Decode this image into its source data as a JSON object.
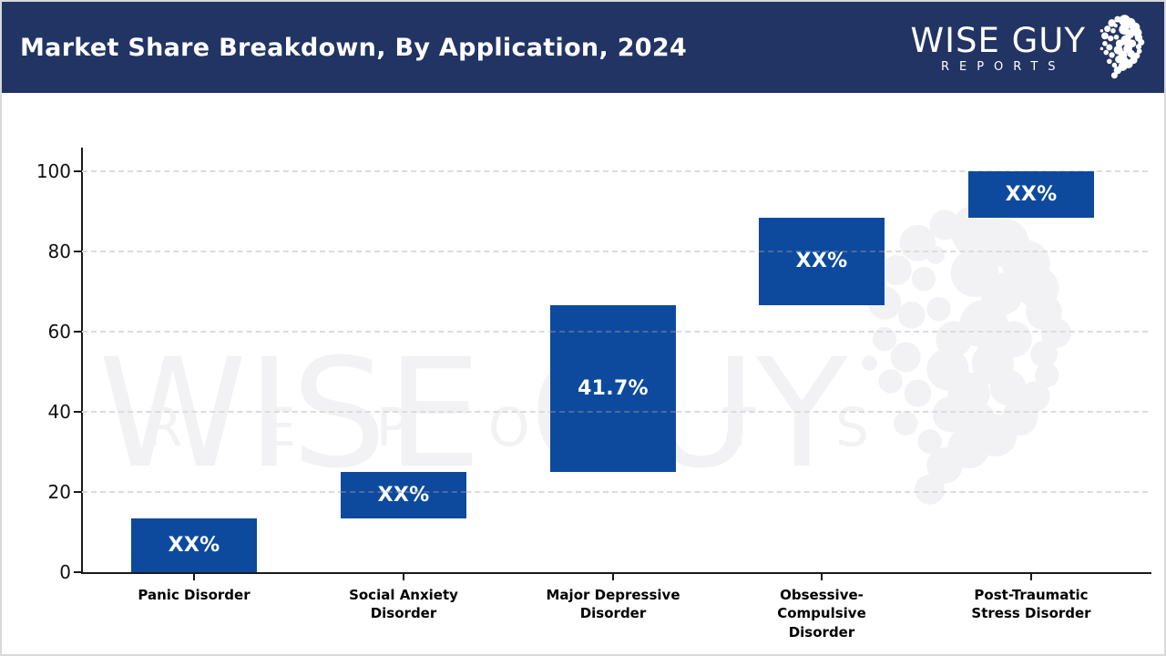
{
  "header": {
    "title": "Market Share Breakdown, By Application, 2024",
    "logo": {
      "line1": "WISE GUY",
      "line2": "REPORTS"
    }
  },
  "watermark": {
    "line1": "WISE GUY",
    "line2": "REPORTS"
  },
  "colors": {
    "header_bg": "#213463",
    "bar": "#0d4a9e",
    "grid": "#dcdcdc",
    "axis": "#1a1a1a",
    "watermark": "#f2f2f4",
    "title_text": "#ffffff",
    "bar_label_text": "#ffffff"
  },
  "chart_data": {
    "type": "bar",
    "subtype": "waterfall",
    "title": "Market Share Breakdown, By Application, 2024",
    "categories": [
      [
        "Panic Disorder"
      ],
      [
        "Social Anxiety",
        "Disorder"
      ],
      [
        "Major Depressive",
        "Disorder"
      ],
      [
        "Obsessive-",
        "Compulsive",
        "Disorder"
      ],
      [
        "Post-Traumatic",
        "Stress Disorder"
      ]
    ],
    "bars": [
      {
        "category": "Panic Disorder",
        "start": 0,
        "end": 13.5,
        "label": "XX%"
      },
      {
        "category": "Social Anxiety Disorder",
        "start": 13.5,
        "end": 25,
        "label": "XX%"
      },
      {
        "category": "Major Depressive Disorder",
        "start": 25,
        "end": 66.7,
        "label": "41.7%"
      },
      {
        "category": "Obsessive-Compulsive Disorder",
        "start": 66.7,
        "end": 88.5,
        "label": "XX%"
      },
      {
        "category": "Post-Traumatic Stress Disorder",
        "start": 88.5,
        "end": 100,
        "label": "XX%"
      }
    ],
    "ylim": [
      0,
      100
    ],
    "yticks": [
      0,
      20,
      40,
      60,
      80,
      100
    ],
    "xlabel": "",
    "ylabel": "",
    "grid": "horizontal-dashed",
    "legend": null
  }
}
